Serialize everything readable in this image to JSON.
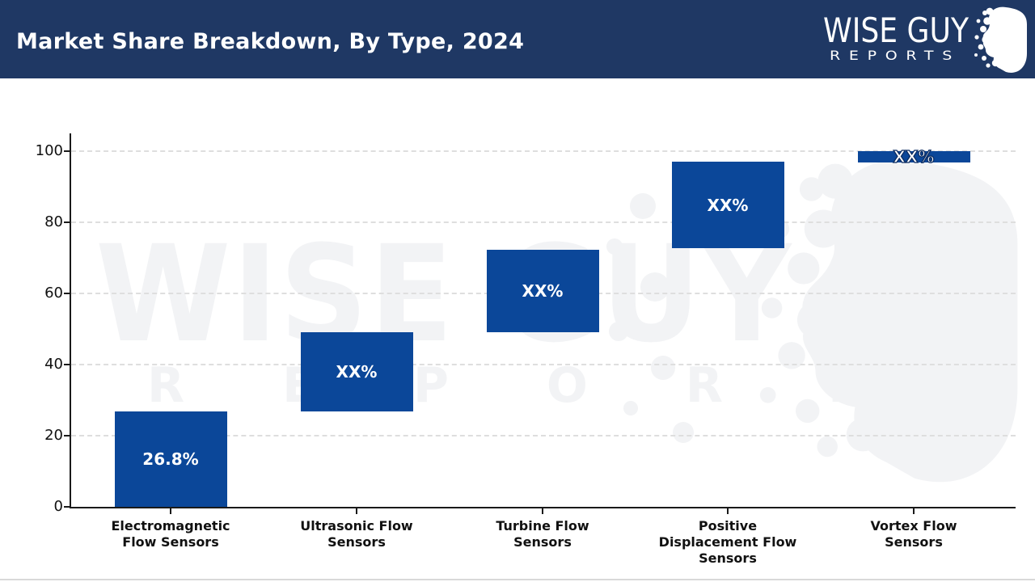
{
  "header": {
    "title": "Market Share Breakdown, By Type, 2024",
    "bg_color": "#1f3864",
    "logo": {
      "line1": "WISE GUY",
      "line2": "REPORTS",
      "icon": "dotted-head-profile"
    }
  },
  "watermark": {
    "line1": "WISE GUY",
    "line2": "R E P O R T S",
    "icon": "dotted-head-profile",
    "color": "#f2f3f5"
  },
  "chart_data": {
    "type": "bar",
    "subtype": "waterfall",
    "title": "Market Share Breakdown, By Type, 2024",
    "xlabel": "",
    "ylabel": "",
    "ylim": [
      0,
      100
    ],
    "yticks": [
      0,
      20,
      40,
      60,
      80,
      100
    ],
    "grid": "horizontal-dashed",
    "bar_color": "#0b4799",
    "label_color": "#ffffff",
    "categories": [
      "Electromagnetic Flow Sensors",
      "Ultrasonic Flow Sensors",
      "Turbine Flow Sensors",
      "Positive Displacement Flow Sensors",
      "Vortex Flow Sensors"
    ],
    "category_lines": [
      [
        "Electromagnetic",
        "Flow Sensors"
      ],
      [
        "Ultrasonic Flow",
        "Sensors"
      ],
      [
        "Turbine Flow",
        "Sensors"
      ],
      [
        "Positive",
        "Displacement Flow",
        "Sensors"
      ],
      [
        "Vortex Flow",
        "Sensors"
      ]
    ],
    "segments": [
      {
        "start": 0,
        "end": 26.8,
        "label": "26.8%"
      },
      {
        "start": 26.8,
        "end": 49,
        "label": "XX%"
      },
      {
        "start": 49,
        "end": 72.3,
        "label": "XX%"
      },
      {
        "start": 72.7,
        "end": 97,
        "label": "XX%"
      },
      {
        "start": 96.8,
        "end": 100,
        "label": "XX%"
      }
    ]
  }
}
